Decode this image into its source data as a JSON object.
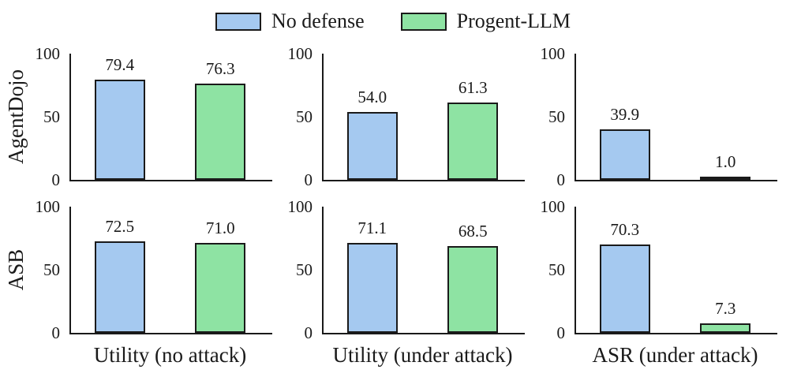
{
  "legend": {
    "position": "top-center",
    "items": [
      {
        "label": "No defense",
        "color": "#a5c9f0"
      },
      {
        "label": "Progent-LLM",
        "color": "#8ee3a3"
      }
    ]
  },
  "chart_data": {
    "type": "bar",
    "rows": [
      "AgentDojo",
      "ASB"
    ],
    "columns": [
      "Utility (no attack)",
      "Utility (under attack)",
      "ASR (under attack)"
    ],
    "series": [
      {
        "name": "No defense",
        "color": "#a5c9f0"
      },
      {
        "name": "Progent-LLM",
        "color": "#8ee3a3"
      }
    ],
    "values": [
      [
        [
          79.4,
          76.3
        ],
        [
          54.0,
          61.3
        ],
        [
          39.9,
          1.0
        ]
      ],
      [
        [
          72.5,
          71.0
        ],
        [
          71.1,
          68.5
        ],
        [
          70.3,
          7.3
        ]
      ]
    ],
    "ylim": [
      0,
      100
    ],
    "yticks": [
      0,
      50,
      100
    ],
    "value_label_decimals": 1,
    "bar_edge_color": "#1a1a1a",
    "text_color": "#1a1a1a",
    "grid": false,
    "legend_position": "top-center",
    "title": "",
    "xlabel": "",
    "ylabel": ""
  }
}
